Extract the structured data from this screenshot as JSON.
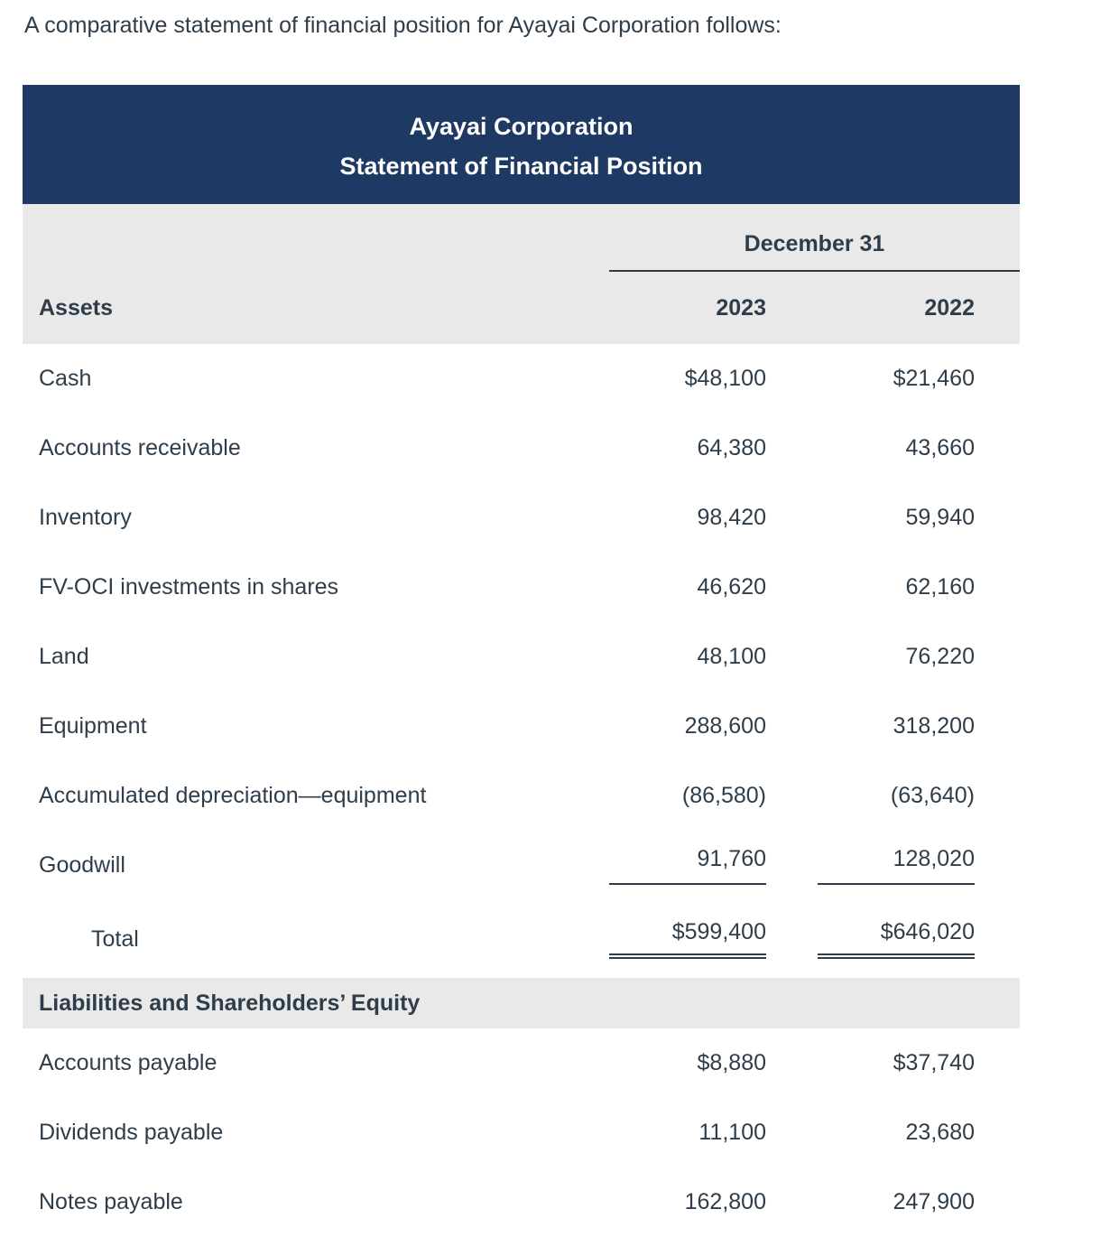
{
  "intro": "A comparative statement of financial position for Ayayai Corporation follows:",
  "colors": {
    "header_navy": "#1e3a64",
    "head_gray": "#e9e9e9",
    "text": "#2e3d49"
  },
  "statement": {
    "title": "Ayayai Corporation",
    "subtitle": "Statement of Financial Position",
    "date_header": "December 31",
    "year_columns": [
      "2023",
      "2022"
    ],
    "assets": {
      "header": "Assets",
      "rows": [
        {
          "label": "Cash",
          "y2023": "$48,100",
          "y2022": "$21,460"
        },
        {
          "label": "Accounts receivable",
          "y2023": "64,380",
          "y2022": "43,660"
        },
        {
          "label": "Inventory",
          "y2023": "98,420",
          "y2022": "59,940"
        },
        {
          "label": "FV-OCI investments in shares",
          "y2023": "46,620",
          "y2022": "62,160"
        },
        {
          "label": "Land",
          "y2023": "48,100",
          "y2022": "76,220"
        },
        {
          "label": "Equipment",
          "y2023": "288,600",
          "y2022": "318,200"
        },
        {
          "label": "Accumulated depreciation—equipment",
          "y2023": "(86,580)",
          "y2022": "(63,640)"
        },
        {
          "label": "Goodwill",
          "y2023": "91,760",
          "y2022": "128,020"
        }
      ],
      "total": {
        "label": "Total",
        "y2023": "$599,400",
        "y2022": "$646,020"
      }
    },
    "liabilities": {
      "header": "Liabilities and Shareholders’ Equity",
      "rows": [
        {
          "label": "Accounts payable",
          "y2023": "$8,880",
          "y2022": "$37,740"
        },
        {
          "label": "Dividends payable",
          "y2023": "11,100",
          "y2022": "23,680"
        },
        {
          "label": "Notes payable",
          "y2023": "162,800",
          "y2022": "247,900"
        }
      ]
    }
  }
}
